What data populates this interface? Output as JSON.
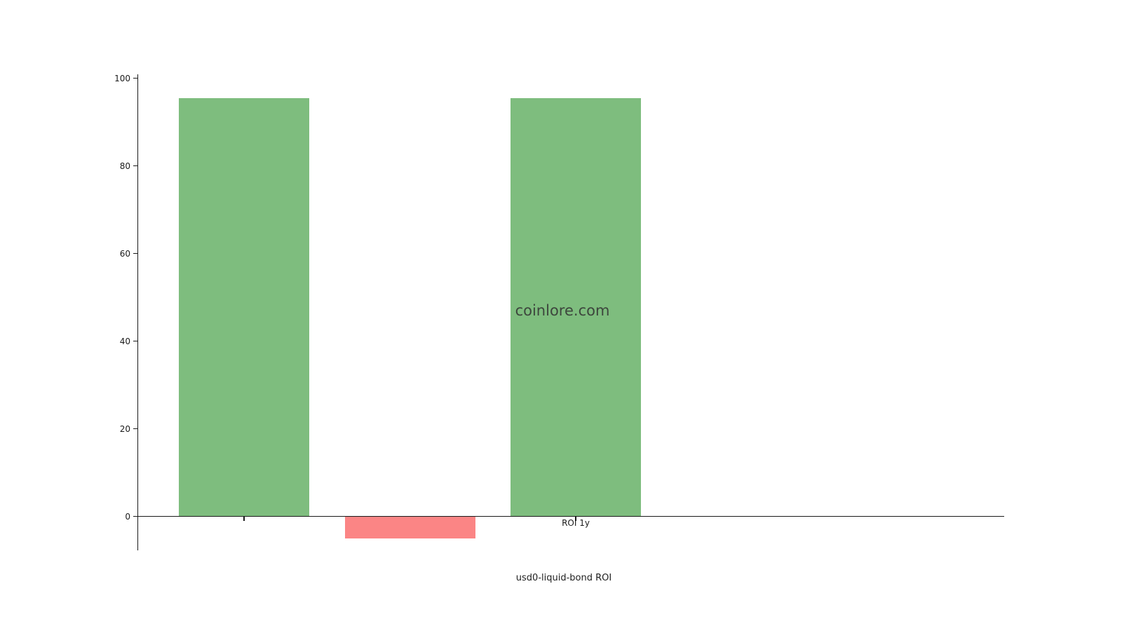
{
  "chart_data": {
    "type": "bar",
    "title": "usd0-liquid-bond ROI",
    "watermark": "coinlore.com",
    "categories": [
      "",
      "",
      "ROI 1y"
    ],
    "values": [
      95.5,
      -5,
      95.5
    ],
    "positive_color": "#7ebd7e",
    "negative_color": "#fb8585",
    "axis_color": "#1a1a1a",
    "text_color": "#1f1f1f",
    "watermark_color": "#3d463d",
    "y_ticks": [
      0,
      20,
      40,
      60,
      80,
      100
    ],
    "ylim": [
      -7.7,
      101
    ],
    "xlabel": "",
    "ylabel": "",
    "grid": false,
    "legend": false
  }
}
